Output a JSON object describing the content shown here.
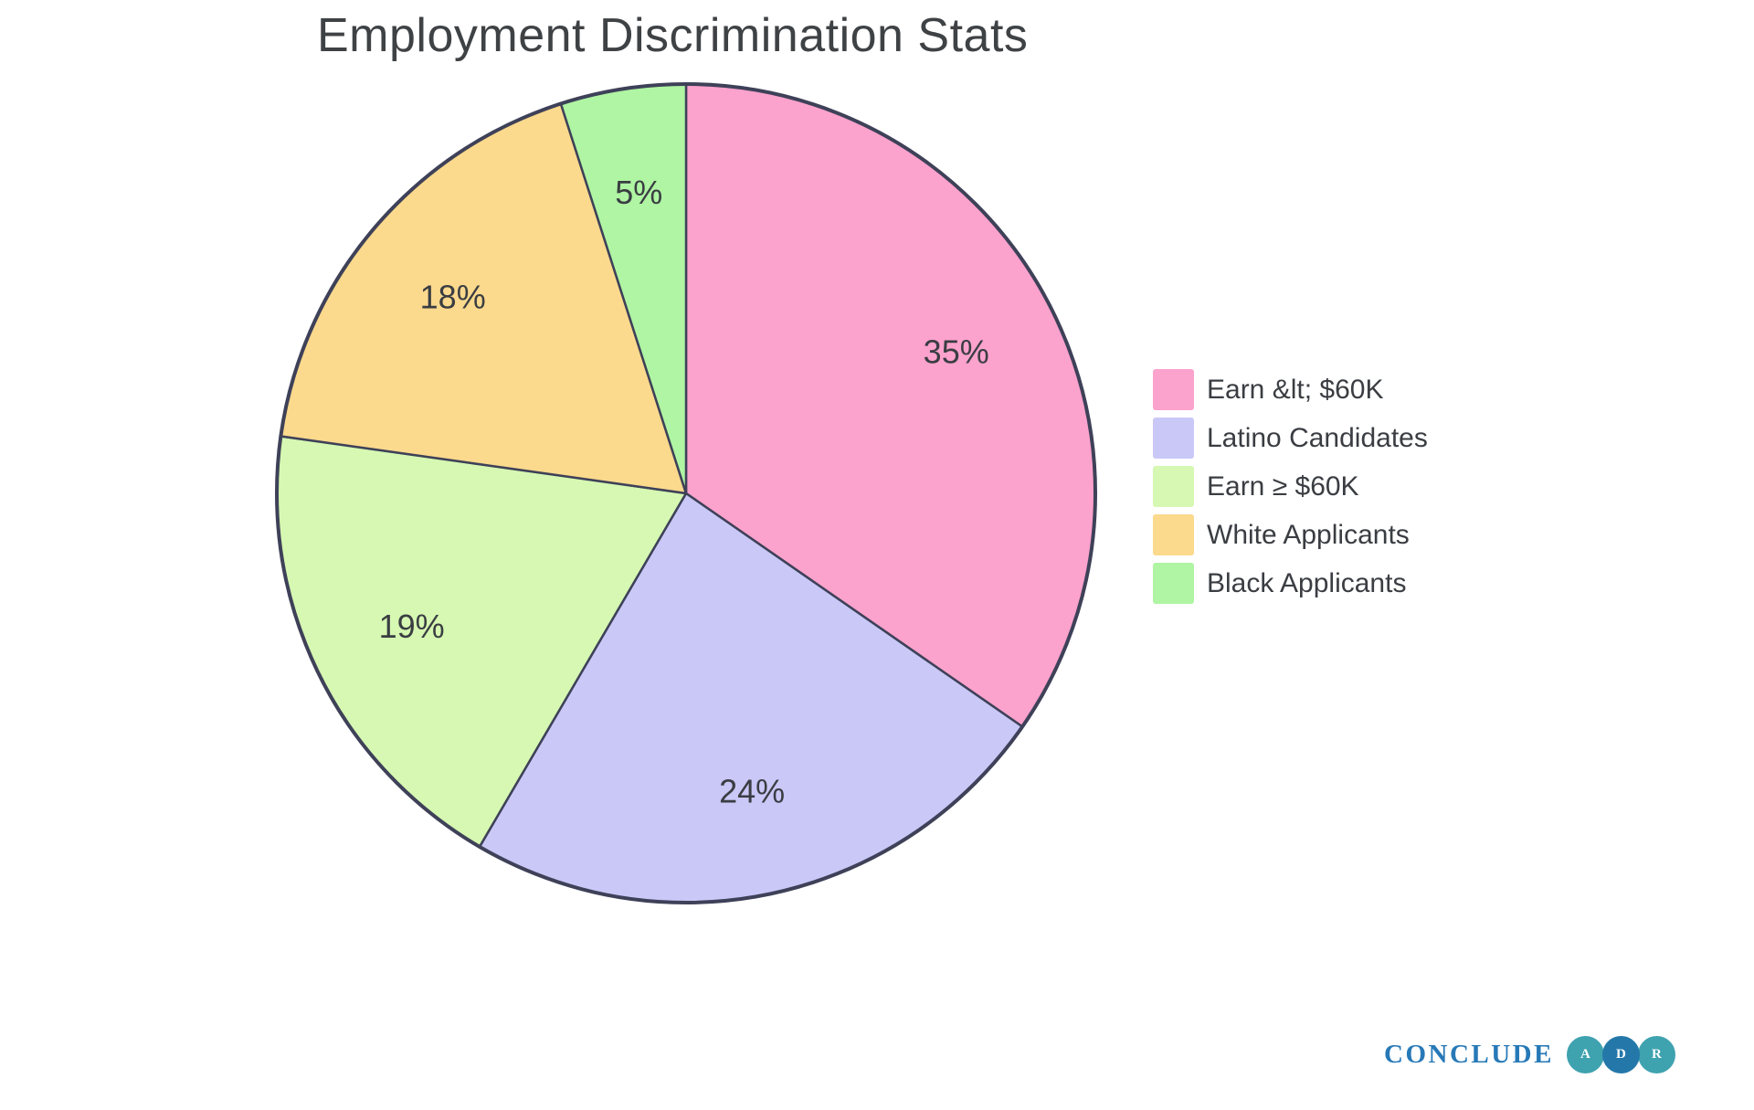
{
  "chart_data": {
    "type": "pie",
    "title": "Employment Discrimination Stats",
    "slices": [
      {
        "label": "Earn &lt; $60K",
        "value": 35,
        "pct_label": "35%",
        "color": "#FBA2CD"
      },
      {
        "label": "Latino Candidates",
        "value": 24,
        "pct_label": "24%",
        "color": "#C9C8F7"
      },
      {
        "label": "Earn ≥ $60K",
        "value": 19,
        "pct_label": "19%",
        "color": "#D6F8B2"
      },
      {
        "label": "White Applicants",
        "value": 18,
        "pct_label": "18%",
        "color": "#FBD98D"
      },
      {
        "label": "Black Applicants",
        "value": 5,
        "pct_label": "5%",
        "color": "#AFF5A3"
      }
    ],
    "start_angle_deg": 0,
    "direction": "clockwise",
    "stroke_color": "#3E4158",
    "label_color": "#3A3D42",
    "legend_position": "right",
    "grid": false
  },
  "logo": {
    "brand_text": "CONCLUDE",
    "brand_color": "#2779B7",
    "badges": [
      {
        "letter": "A",
        "color": "#3FA2AF"
      },
      {
        "letter": "D",
        "color": "#2478A9"
      },
      {
        "letter": "R",
        "color": "#3FA2AF"
      }
    ]
  }
}
